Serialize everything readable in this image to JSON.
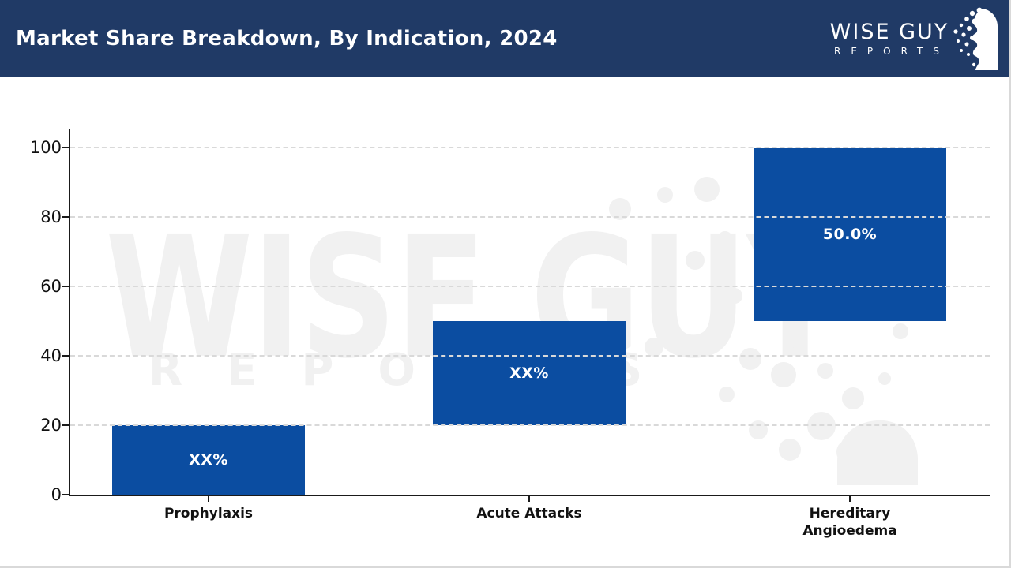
{
  "header": {
    "title": "Market Share Breakdown, By Indication, 2024",
    "bg_color": "#203A66",
    "logo": {
      "wordmark": "WISE GUY",
      "subtext": "REPORTS",
      "icon": "face-profile-dots"
    }
  },
  "watermark": {
    "wordmark": "WISE GUY",
    "subtext": "REPORTS",
    "icon": "face-profile-dots",
    "color": "#f1f1f1"
  },
  "chart_data": {
    "type": "bar",
    "variant": "floating-range",
    "title": "Market Share Breakdown, By Indication, 2024",
    "categories": [
      "Prophylaxis",
      "Acute Attacks",
      "Hereditary Angioedema"
    ],
    "series": [
      {
        "name": "Market Share (%)",
        "ranges": [
          [
            0,
            20
          ],
          [
            20,
            50
          ],
          [
            50,
            100
          ]
        ],
        "labels": [
          "XX%",
          "XX%",
          "50.0%"
        ]
      }
    ],
    "ylim": [
      0,
      100
    ],
    "yticks": [
      0,
      20,
      40,
      60,
      80,
      100
    ],
    "grid": {
      "horizontal": true,
      "style": "dashed",
      "color": "#d9d9d9"
    },
    "legend": "none",
    "bar_color": "#0B4DA1",
    "bar_label_color": "#ffffff",
    "axis_color": "#1a1a1a",
    "tick_label_color": "#111111"
  }
}
